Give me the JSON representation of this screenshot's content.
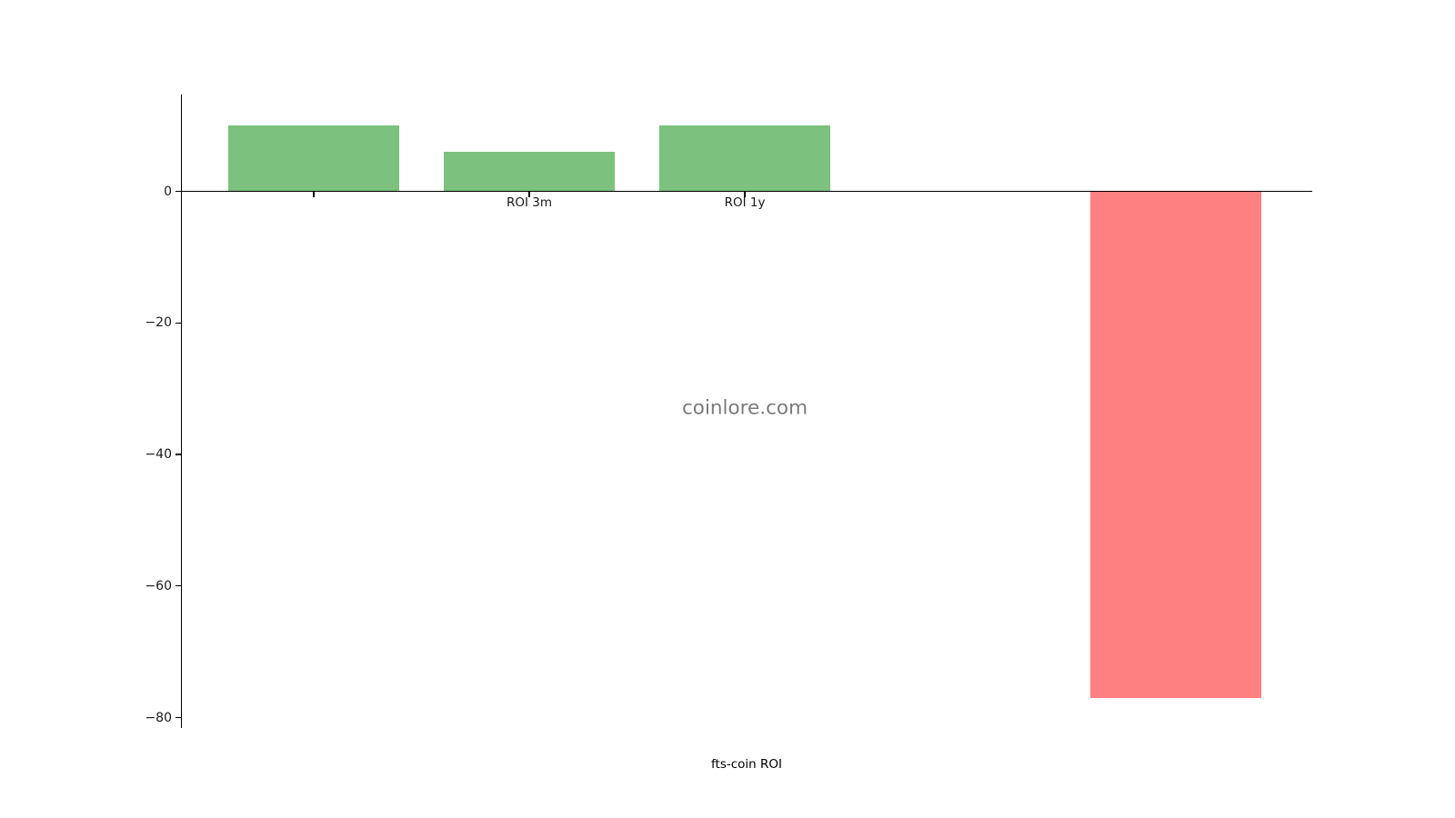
{
  "chart_data": {
    "type": "bar",
    "title": "fts-coin ROI",
    "title_position": "bottom",
    "watermark": "coinlore.com",
    "categories": [
      "",
      "ROI 3m",
      "ROI 1y",
      "",
      ""
    ],
    "values": [
      10,
      6,
      10,
      null,
      -77
    ],
    "x_tick_visible": [
      true,
      true,
      true,
      false,
      false
    ],
    "y_axis": {
      "ticks": [
        0,
        -20,
        -40,
        -60,
        -80
      ],
      "tick_labels": [
        "0",
        "−20",
        "−40",
        "−60",
        "−80"
      ],
      "lim": [
        -81.7,
        14.8
      ]
    },
    "xlabel": "",
    "ylabel": "",
    "grid": false,
    "legend": false,
    "colors": {
      "positive_bar": "#7cc17e",
      "negative_bar": "#ff8080",
      "axis": "#000000",
      "tick_label": "#1a1a1a",
      "watermark": "#7b7b7b",
      "background": "#ffffff"
    }
  }
}
